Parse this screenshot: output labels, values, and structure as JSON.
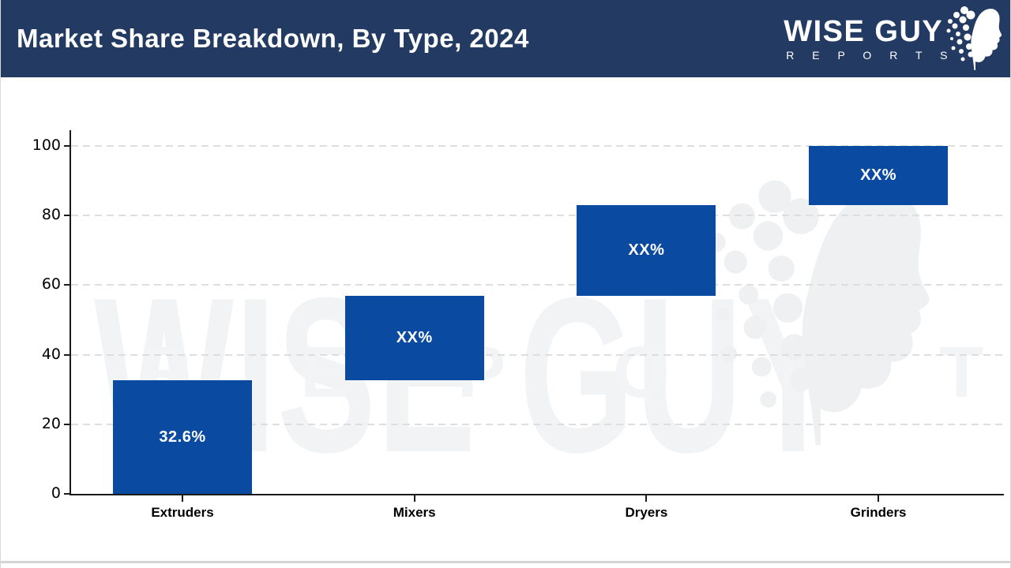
{
  "header": {
    "title": "Market Share Breakdown, By Type, 2024",
    "bg_color": "#233a63",
    "logo": {
      "name": "WISE GUY",
      "tagline": "R E P O R T S"
    }
  },
  "watermark": {
    "line1": "WISE GUY",
    "line2": "R E P O R T S"
  },
  "chart_data": {
    "type": "bar",
    "subtype": "floating-waterfall",
    "title": "Market Share Breakdown, By Type, 2024",
    "categories": [
      "Extruders",
      "Mixers",
      "Dryers",
      "Grinders"
    ],
    "series": [
      {
        "name": "Market share (%)",
        "segments": [
          {
            "category": "Extruders",
            "from": 0,
            "to": 32.6,
            "label": "32.6%"
          },
          {
            "category": "Mixers",
            "from": 32.6,
            "to": 57,
            "label": "XX%"
          },
          {
            "category": "Dryers",
            "from": 57,
            "to": 83,
            "label": "XX%"
          },
          {
            "category": "Grinders",
            "from": 83,
            "to": 100,
            "label": "XX%"
          }
        ]
      }
    ],
    "yticks": [
      0,
      20,
      40,
      60,
      80,
      100
    ],
    "ylim": [
      0,
      105
    ],
    "xlabel": "",
    "ylabel": "",
    "grid": "dashed-horizontal",
    "legend": "none",
    "bar_color": "#0b4aa1",
    "label_color": "#ffffff",
    "axis_color": "#1a1a1a"
  }
}
